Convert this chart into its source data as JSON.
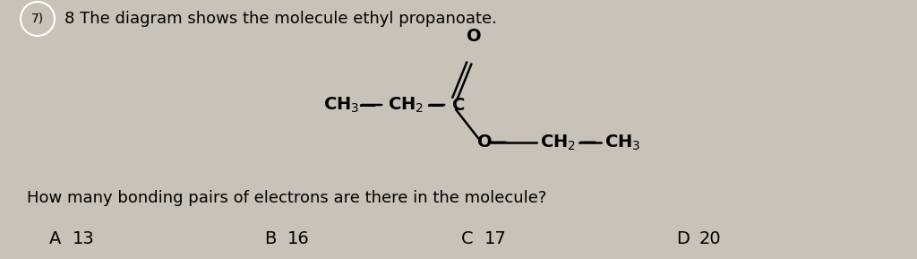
{
  "background_color": "#c8c2b8",
  "question_number": "7)",
  "marks": "8",
  "question_text": "The diagram shows the molecule ethyl propanoate.",
  "sub_question": "How many bonding pairs of electrons are there in the molecule?",
  "options_letters": [
    "A",
    "B",
    "C",
    "D"
  ],
  "options_values": [
    "13",
    "16",
    "17",
    "20"
  ],
  "font_size_question": 13,
  "font_size_molecule": 14,
  "font_size_options": 14,
  "fig_width": 10.24,
  "fig_height": 2.89,
  "dpi": 100
}
